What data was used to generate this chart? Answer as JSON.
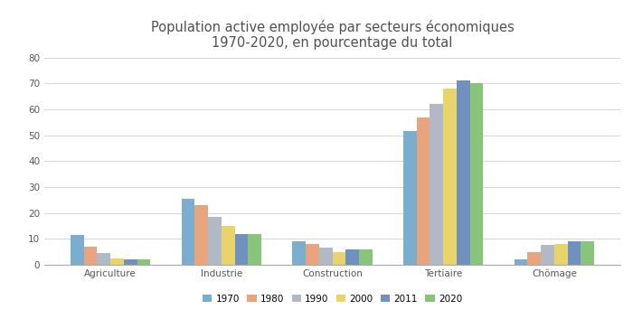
{
  "title": "Population active employée par secteurs économiques\n1970-2020, en pourcentage du total",
  "categories": [
    "Agriculture",
    "Industrie",
    "Construction",
    "Tertiaire",
    "Chômage"
  ],
  "years": [
    "1970",
    "1980",
    "1990",
    "2000",
    "2011",
    "2020"
  ],
  "values": {
    "Agriculture": [
      11.5,
      7.0,
      4.5,
      2.5,
      2.0,
      2.0
    ],
    "Industrie": [
      25.5,
      23.0,
      18.5,
      15.0,
      12.0,
      12.0
    ],
    "Construction": [
      9.0,
      8.0,
      6.5,
      5.0,
      6.0,
      6.0
    ],
    "Tertiaire": [
      51.5,
      57.0,
      62.0,
      68.0,
      71.0,
      70.0
    ],
    "Chômage": [
      2.0,
      5.0,
      7.5,
      8.0,
      9.0,
      9.0
    ]
  },
  "colors": [
    "#7aadce",
    "#e8a47c",
    "#b0b9c5",
    "#e8d46a",
    "#7090c0",
    "#88c47a"
  ],
  "ylim": [
    0,
    80
  ],
  "yticks": [
    0,
    10,
    20,
    30,
    40,
    50,
    60,
    70,
    80
  ],
  "bar_width": 0.12,
  "figsize": [
    7.0,
    3.53
  ],
  "dpi": 100,
  "background_color": "#ffffff",
  "grid_color": "#d8d8d8",
  "title_fontsize": 10.5,
  "tick_fontsize": 7.5,
  "legend_fontsize": 7.5
}
